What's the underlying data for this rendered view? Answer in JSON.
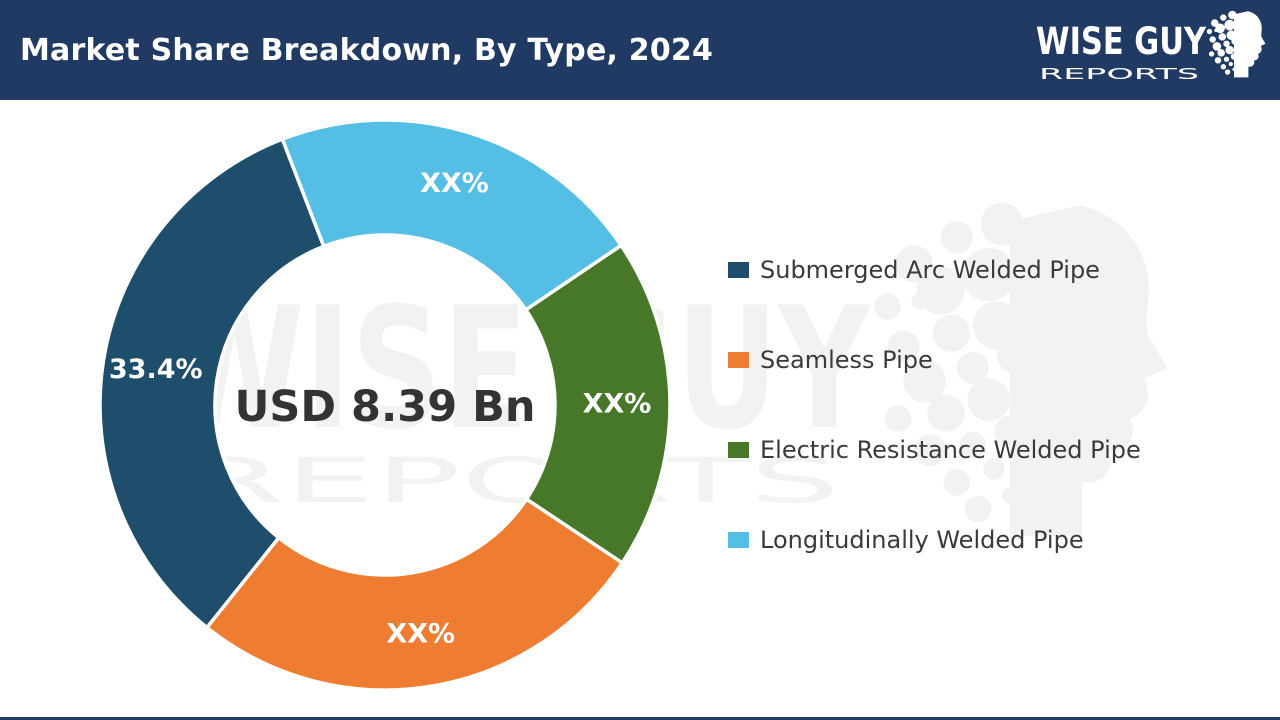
{
  "header": {
    "title": "Market Share Breakdown, By Type, 2024",
    "logo": {
      "line1": "WISE GUY",
      "line2": "REPORTS"
    }
  },
  "watermark": {
    "line1": "WISE GUY",
    "line2": "REPORTS"
  },
  "colors": {
    "header_bg": "#213a63",
    "footer_bar": "#213a63",
    "page_bg": "#ffffff",
    "title_text": "#ffffff",
    "legend_text": "#3a3a3a",
    "center_text": "#333333",
    "slice_label_text": "#ffffff",
    "watermark_tint": "#f2f2f2"
  },
  "chart_data": {
    "type": "donut",
    "title": "Market Share Breakdown, By Type, 2024",
    "center_label": "USD 8.39 Bn",
    "start_angle_deg": 111.1,
    "direction": "counterclockwise",
    "legend_position": "right",
    "segments": [
      {
        "label": "Submerged Arc Welded Pipe",
        "display_pct": "33.4%",
        "value_pct": 33.4,
        "color": "#1f4e6d"
      },
      {
        "label": "Seamless Pipe",
        "display_pct": "XX%",
        "value_pct": 26.4,
        "color": "#ee7d31"
      },
      {
        "label": "Electric Resistance Welded Pipe",
        "display_pct": "XX%",
        "value_pct": 18.8,
        "color": "#47782a"
      },
      {
        "label": "Longitudinally Welded Pipe",
        "display_pct": "XX%",
        "value_pct": 21.4,
        "color": "#55bee5"
      }
    ]
  }
}
